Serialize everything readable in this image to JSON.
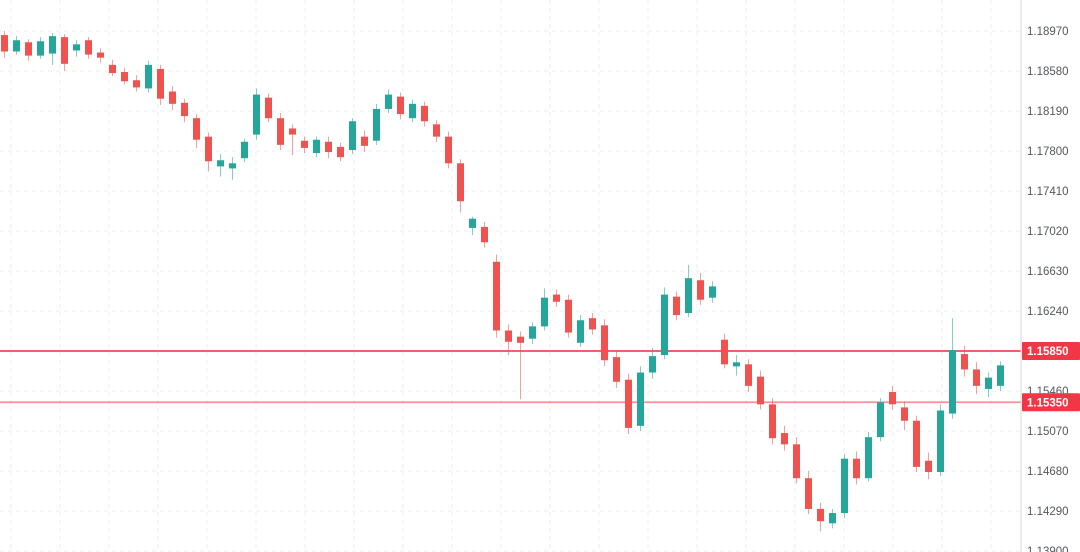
{
  "style": {
    "background": "#ffffff",
    "up_color": "#26a69a",
    "down_color": "#ef5350",
    "wick_opacity": 0.55,
    "grid_color": "#e9eef5",
    "level_line_color": "#f23645",
    "level_label_bg": "#f23645",
    "level_label_text": "#ffffff",
    "axis_border_color": "#d7dade",
    "axis_text_color": "#55585f"
  },
  "chart_data": {
    "type": "candlestick",
    "title": "",
    "grid": true,
    "legend_position": "none",
    "y_axis": {
      "side": "right",
      "tick_step": 0.0039,
      "ticks": [
        1.1897,
        1.1858,
        1.1819,
        1.178,
        1.1741,
        1.1702,
        1.1663,
        1.1624,
        1.1585,
        1.1546,
        1.1507,
        1.1468,
        1.1429,
        1.139
      ],
      "label_decimals": 5
    },
    "horizontal_levels": [
      {
        "price": 1.1585,
        "label": "1.15850"
      },
      {
        "price": 1.1535,
        "label": "1.15350"
      }
    ],
    "ylim": [
      1.1385,
      1.191
    ],
    "candles_format": [
      "open",
      "high",
      "low",
      "close"
    ],
    "candles": [
      [
        1.1893,
        1.1897,
        1.1871,
        1.1877
      ],
      [
        1.1877,
        1.1892,
        1.1874,
        1.1888
      ],
      [
        1.1886,
        1.1889,
        1.1868,
        1.1873
      ],
      [
        1.1873,
        1.1891,
        1.187,
        1.1887
      ],
      [
        1.1875,
        1.1895,
        1.1864,
        1.1892
      ],
      [
        1.1891,
        1.1894,
        1.1858,
        1.1865
      ],
      [
        1.1878,
        1.1888,
        1.1872,
        1.1884
      ],
      [
        1.1888,
        1.1891,
        1.187,
        1.1874
      ],
      [
        1.1876,
        1.188,
        1.1866,
        1.1871
      ],
      [
        1.1864,
        1.1869,
        1.1853,
        1.1856
      ],
      [
        1.1857,
        1.1861,
        1.1845,
        1.1848
      ],
      [
        1.1849,
        1.1854,
        1.1838,
        1.1842
      ],
      [
        1.1841,
        1.1868,
        1.1837,
        1.1864
      ],
      [
        1.186,
        1.1864,
        1.1825,
        1.1831
      ],
      [
        1.1838,
        1.1843,
        1.182,
        1.1826
      ],
      [
        1.1827,
        1.1831,
        1.1808,
        1.1814
      ],
      [
        1.1812,
        1.1816,
        1.1783,
        1.1791
      ],
      [
        1.1794,
        1.1798,
        1.176,
        1.177
      ],
      [
        1.1765,
        1.1777,
        1.1755,
        1.1771
      ],
      [
        1.1763,
        1.1774,
        1.1752,
        1.1768
      ],
      [
        1.1773,
        1.1792,
        1.1769,
        1.1789
      ],
      [
        1.1796,
        1.1841,
        1.1791,
        1.1835
      ],
      [
        1.1832,
        1.1836,
        1.1808,
        1.1812
      ],
      [
        1.1812,
        1.1817,
        1.1781,
        1.1786
      ],
      [
        1.1802,
        1.1806,
        1.1776,
        1.1796
      ],
      [
        1.179,
        1.1794,
        1.1778,
        1.1783
      ],
      [
        1.1778,
        1.1794,
        1.1774,
        1.1791
      ],
      [
        1.1789,
        1.1794,
        1.1773,
        1.1779
      ],
      [
        1.1784,
        1.1788,
        1.177,
        1.1774
      ],
      [
        1.1781,
        1.1812,
        1.1777,
        1.1809
      ],
      [
        1.1794,
        1.18,
        1.1779,
        1.1785
      ],
      [
        1.179,
        1.1826,
        1.1786,
        1.1821
      ],
      [
        1.1821,
        1.184,
        1.1817,
        1.1835
      ],
      [
        1.1833,
        1.1837,
        1.1811,
        1.1816
      ],
      [
        1.1812,
        1.183,
        1.1808,
        1.1826
      ],
      [
        1.1824,
        1.1828,
        1.1804,
        1.1809
      ],
      [
        1.1806,
        1.181,
        1.1789,
        1.1794
      ],
      [
        1.1794,
        1.1799,
        1.1763,
        1.1768
      ],
      [
        1.1768,
        1.1772,
        1.172,
        1.1731
      ],
      [
        1.1705,
        1.1716,
        1.1698,
        1.1714
      ],
      [
        1.1706,
        1.1711,
        1.1686,
        1.1691
      ],
      [
        1.1672,
        1.1679,
        1.1598,
        1.1605
      ],
      [
        1.1605,
        1.1611,
        1.1581,
        1.1594
      ],
      [
        1.1599,
        1.1604,
        1.1538,
        1.1593
      ],
      [
        1.1597,
        1.1613,
        1.1592,
        1.1609
      ],
      [
        1.1609,
        1.1646,
        1.1605,
        1.1637
      ],
      [
        1.164,
        1.1645,
        1.1628,
        1.1633
      ],
      [
        1.1635,
        1.164,
        1.1598,
        1.1603
      ],
      [
        1.1593,
        1.162,
        1.1589,
        1.1615
      ],
      [
        1.1617,
        1.1622,
        1.1601,
        1.1606
      ],
      [
        1.161,
        1.1616,
        1.157,
        1.1576
      ],
      [
        1.1579,
        1.1585,
        1.1549,
        1.1555
      ],
      [
        1.1557,
        1.1563,
        1.1504,
        1.151
      ],
      [
        1.1512,
        1.157,
        1.1507,
        1.1564
      ],
      [
        1.1564,
        1.1588,
        1.1558,
        1.158
      ],
      [
        1.1581,
        1.1647,
        1.1577,
        1.164
      ],
      [
        1.1638,
        1.1643,
        1.1615,
        1.162
      ],
      [
        1.1622,
        1.1669,
        1.1618,
        1.1656
      ],
      [
        1.1654,
        1.1661,
        1.163,
        1.1635
      ],
      [
        1.1637,
        1.1653,
        1.1632,
        1.1648
      ],
      [
        1.1596,
        1.1602,
        1.1568,
        1.1572
      ],
      [
        1.157,
        1.1581,
        1.1561,
        1.1574
      ],
      [
        1.1572,
        1.1577,
        1.1545,
        1.1551
      ],
      [
        1.156,
        1.1566,
        1.1528,
        1.1533
      ],
      [
        1.1533,
        1.1539,
        1.1494,
        1.15
      ],
      [
        1.1505,
        1.1512,
        1.1488,
        1.1494
      ],
      [
        1.1494,
        1.1501,
        1.1456,
        1.1461
      ],
      [
        1.1461,
        1.1468,
        1.1426,
        1.1431
      ],
      [
        1.1431,
        1.1437,
        1.1409,
        1.1419
      ],
      [
        1.1417,
        1.1431,
        1.1412,
        1.1427
      ],
      [
        1.1427,
        1.1485,
        1.1422,
        1.148
      ],
      [
        1.148,
        1.1487,
        1.1455,
        1.1461
      ],
      [
        1.1461,
        1.1506,
        1.1458,
        1.1501
      ],
      [
        1.1501,
        1.1539,
        1.1497,
        1.1535
      ],
      [
        1.1545,
        1.1551,
        1.1528,
        1.1533
      ],
      [
        1.153,
        1.1536,
        1.1508,
        1.1517
      ],
      [
        1.1517,
        1.1522,
        1.1467,
        1.1472
      ],
      [
        1.1478,
        1.1486,
        1.146,
        1.1467
      ],
      [
        1.1467,
        1.1533,
        1.1463,
        1.1527
      ],
      [
        1.1524,
        1.1617,
        1.1519,
        1.1586
      ],
      [
        1.1582,
        1.159,
        1.156,
        1.1567
      ],
      [
        1.1567,
        1.1574,
        1.1543,
        1.1551
      ],
      [
        1.1548,
        1.1564,
        1.154,
        1.1559
      ],
      [
        1.1551,
        1.1575,
        1.1546,
        1.1571
      ]
    ]
  }
}
